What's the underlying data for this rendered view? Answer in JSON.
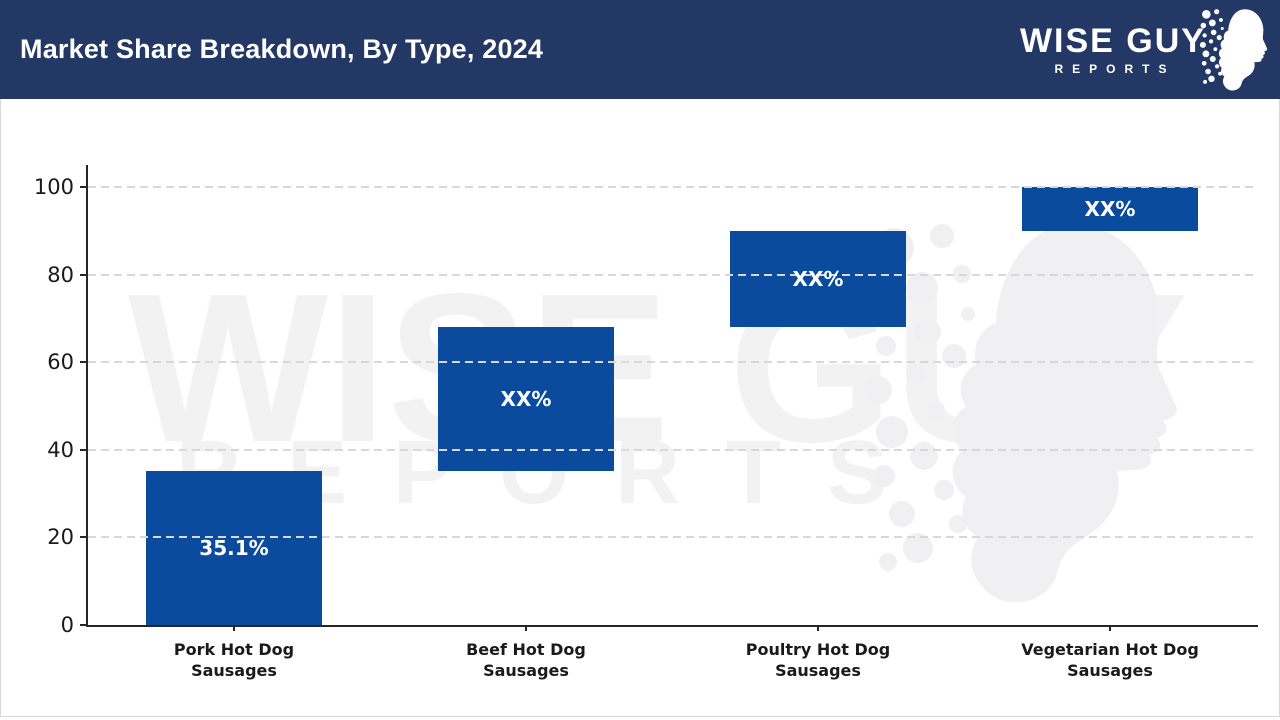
{
  "header": {
    "title": "Market Share Breakdown, By Type, 2024",
    "logo": {
      "name_top": "WISE GUY",
      "name_bottom": "REPORTS"
    }
  },
  "watermark": {
    "line1": "WISE GUY",
    "line2": "REPORTS"
  },
  "colors": {
    "header_bg": "#233864",
    "bar": "#0b4b9e",
    "grid": "#d8d8d8",
    "axis": "#262626",
    "tick_text": "#1a1a1a",
    "bar_label_text": "#ffffff",
    "watermark": "#f2f2f3"
  },
  "chart_data": {
    "type": "bar",
    "variant": "waterfall",
    "title": "Market Share Breakdown, By Type, 2024",
    "categories": [
      "Pork Hot Dog\nSausages",
      "Beef Hot Dog\nSausages",
      "Poultry Hot Dog\nSausages",
      "Vegetarian Hot Dog\nSausages"
    ],
    "segments": [
      {
        "category": "Pork Hot Dog Sausages",
        "start": 0,
        "end": 35.1,
        "label": "35.1%"
      },
      {
        "category": "Beef Hot Dog Sausages",
        "start": 35.1,
        "end": 68,
        "label": "XX%"
      },
      {
        "category": "Poultry Hot Dog Sausages",
        "start": 68,
        "end": 90,
        "label": "XX%"
      },
      {
        "category": "Vegetarian Hot Dog Sausages",
        "start": 90,
        "end": 100,
        "label": "XX%"
      }
    ],
    "xlabel": "",
    "ylabel": "",
    "ylim": [
      0,
      100
    ],
    "yticks": [
      0,
      20,
      40,
      60,
      80,
      100
    ],
    "grid": "horizontal-dashed",
    "legend": false
  }
}
